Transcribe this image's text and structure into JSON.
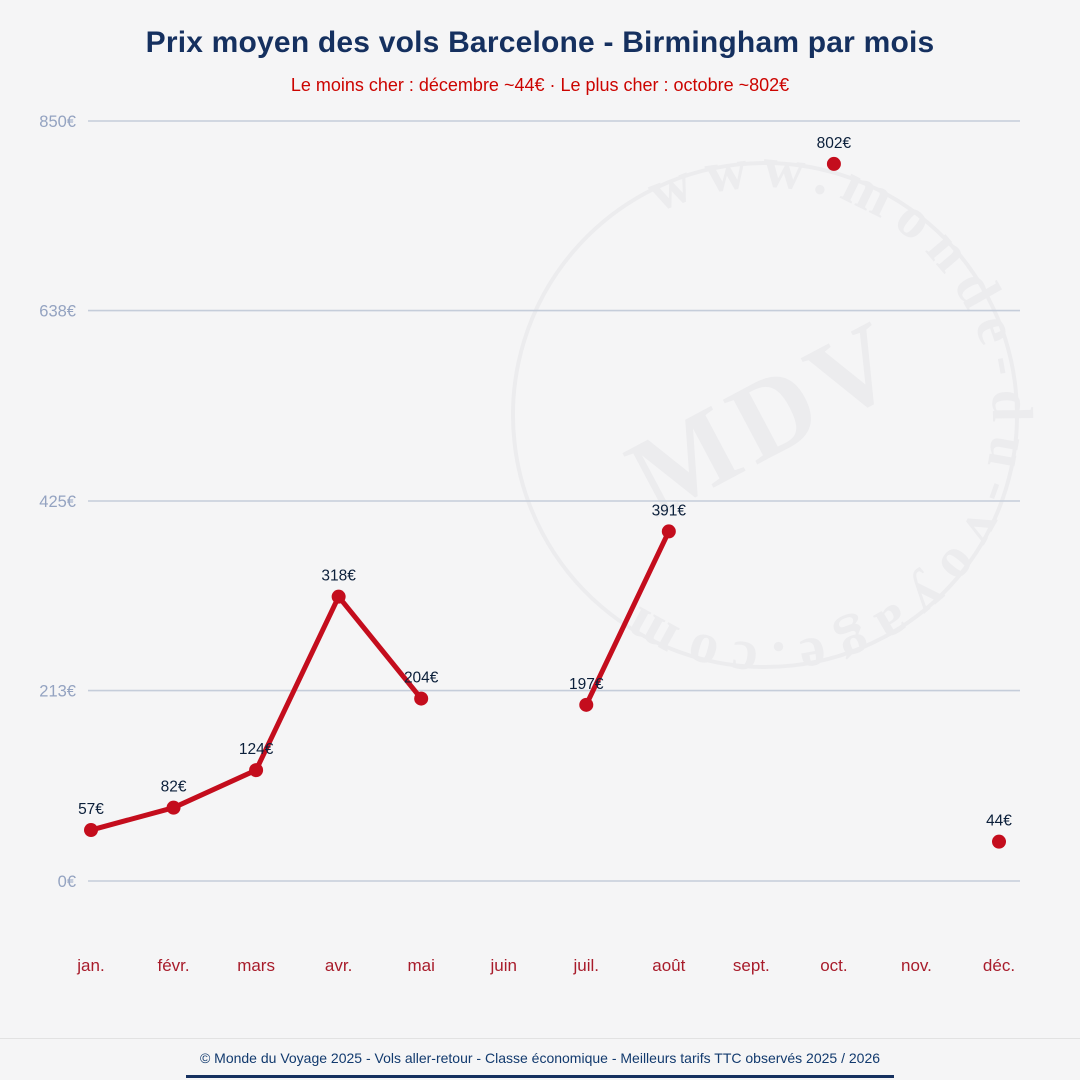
{
  "page": {
    "title": "Prix moyen des vols Barcelone - Birmingham par mois",
    "subtitle": "Le moins cher : décembre ~44€ · Le plus cher : octobre ~802€",
    "footer": "© Monde du Voyage 2025 - Vols aller-retour - Classe économique - Meilleurs tarifs TTC observés 2025 / 2026",
    "watermark": {
      "ring_text": "www.monde-du-voyage.com",
      "center_text": "MDV"
    }
  },
  "colors": {
    "background": "#f5f5f6",
    "title": "#15305f",
    "subtitle": "#cc0400",
    "line": "#c40d1d",
    "point": "#c40d1d",
    "point_label": "#0b1f3a",
    "grid": "#c5cdda",
    "y_tick_label": "#94a3c1",
    "x_tick_label": "#a81c2b",
    "footer": "#123a6e",
    "watermark": "#e6e6e9"
  },
  "chart_data": {
    "type": "line",
    "title": "Prix moyen des vols Barcelone - Birmingham par mois",
    "subtitle": "Le moins cher : décembre ~44€ · Le plus cher : octobre ~802€",
    "categories": [
      "jan.",
      "févr.",
      "mars",
      "avr.",
      "mai",
      "juin",
      "juil.",
      "août",
      "sept.",
      "oct.",
      "nov.",
      "déc."
    ],
    "values": [
      57,
      82,
      124,
      318,
      204,
      null,
      197,
      391,
      null,
      802,
      null,
      44
    ],
    "point_labels": [
      "57€",
      "82€",
      "124€",
      "318€",
      "204€",
      null,
      "197€",
      "391€",
      null,
      "802€",
      null,
      "44€"
    ],
    "ytick_values": [
      850,
      638,
      425,
      213,
      0
    ],
    "ytick_labels": [
      "850€",
      "638€",
      "425€",
      "213€",
      "0€"
    ],
    "ylim": [
      0,
      850
    ],
    "grid": true,
    "legend": "none",
    "cheapest": {
      "month": "décembre",
      "value": 44
    },
    "most_expensive": {
      "month": "octobre",
      "value": 802
    }
  }
}
